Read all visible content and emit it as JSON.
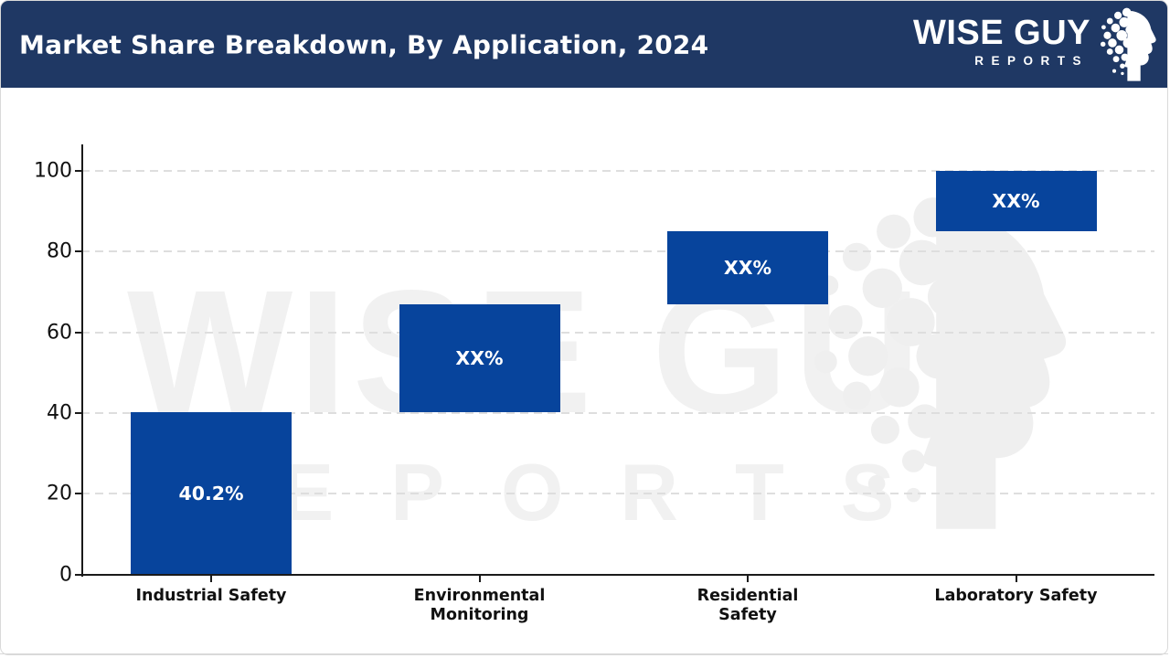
{
  "header": {
    "title": "Market Share Breakdown, By Application, 2024",
    "bg_color": "#1F3864",
    "logo": {
      "line1": "WISE GUY",
      "line2": "REPORTS"
    }
  },
  "watermark": {
    "line1": "WISE GUY",
    "line2": "REPORTS"
  },
  "chart_data": {
    "type": "bar",
    "subtype": "waterfall-floating-bars",
    "title": "Market Share Breakdown, By Application, 2024",
    "categories": [
      "Industrial Safety",
      "Environmental Monitoring",
      "Residential Safety",
      "Laboratory Safety"
    ],
    "segments": [
      {
        "category": "Industrial Safety",
        "start": 0,
        "end": 40.2,
        "label": "40.2%"
      },
      {
        "category": "Environmental Monitoring",
        "start": 40.2,
        "end": 67,
        "label": "XX%"
      },
      {
        "category": "Residential Safety",
        "start": 67,
        "end": 85,
        "label": "XX%"
      },
      {
        "category": "Laboratory Safety",
        "start": 85,
        "end": 100,
        "label": "XX%"
      }
    ],
    "yticks": [
      0,
      20,
      40,
      60,
      80,
      100
    ],
    "ylim": [
      0,
      105
    ],
    "bar_color": "#07449C",
    "grid": true,
    "gridline_style": "dashed",
    "legend": "none"
  }
}
